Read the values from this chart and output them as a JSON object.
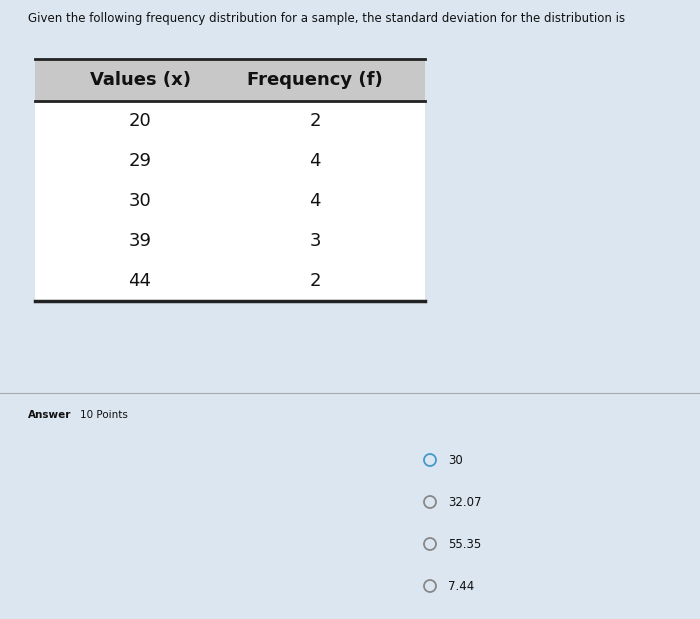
{
  "title": "Given the following frequency distribution for a sample, the standard deviation for the distribution is",
  "col1_header": "Values (x)",
  "col2_header": "Frequency (f)",
  "values_x": [
    20,
    29,
    30,
    39,
    44
  ],
  "values_f": [
    2,
    4,
    4,
    3,
    2
  ],
  "answer_label": "Answer",
  "answer_points": "10 Points",
  "choices": [
    "30",
    "32.07",
    "55.35",
    "7.44"
  ],
  "bg_color": "#dce6f0",
  "table_bg": "#ffffff",
  "header_bg": "#c8c8c8",
  "text_color": "#111111",
  "title_fontsize": 8.5,
  "header_fontsize": 13,
  "data_fontsize": 13,
  "answer_fontsize": 7.5,
  "choice_fontsize": 8.5,
  "circle_color": "#4499cc",
  "circle_color2": "#888888",
  "separator_color": "#aaaaaa"
}
